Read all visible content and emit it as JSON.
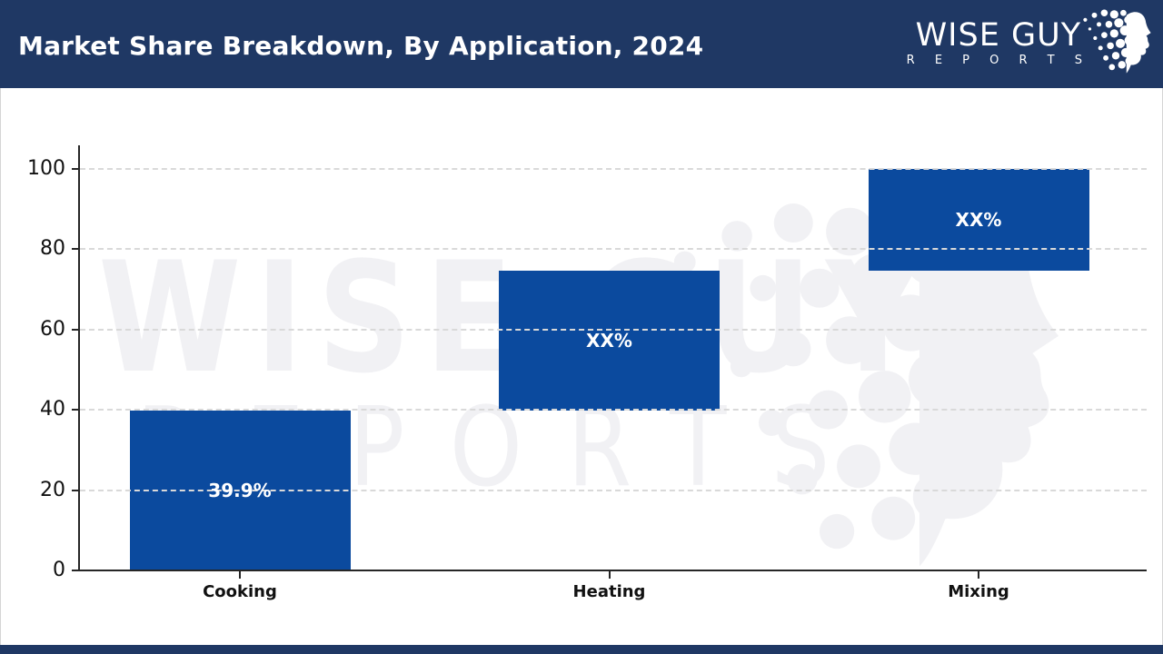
{
  "header": {
    "title": "Market Share Breakdown, By Application, 2024",
    "bg_color": "#1f3864",
    "logo": {
      "primary": "WISE GUY",
      "secondary": "R E P O R T S",
      "face_icon": "dotted-head-profile"
    }
  },
  "watermark": {
    "line1": "WISE GUY",
    "line2": "REPORTS",
    "color": "#f1f1f4"
  },
  "chart_data": {
    "type": "bar",
    "subtype": "floating-waterfall",
    "title": "Market Share Breakdown, By Application, 2024",
    "categories": [
      "Cooking",
      "Heating",
      "Mixing"
    ],
    "series": [
      {
        "name": "Market Share (%)",
        "segments": [
          {
            "category": "Cooking",
            "start": 0,
            "end": 39.9,
            "label": "39.9%"
          },
          {
            "category": "Heating",
            "start": 39.9,
            "end": 74.7,
            "label": "XX%"
          },
          {
            "category": "Mixing",
            "start": 74.7,
            "end": 100,
            "label": "XX%"
          }
        ]
      }
    ],
    "xlabel": "",
    "ylabel": "",
    "yticks": [
      0,
      20,
      40,
      60,
      80,
      100
    ],
    "ylim": [
      0,
      107
    ],
    "bar_color": "#0b4a9e",
    "value_label_color": "#ffffff",
    "axis_color": "#262626",
    "grid": {
      "horizontal": true,
      "style": "dashed",
      "color": "#d9d9d9",
      "above_bars": true
    },
    "legend": "none"
  },
  "footer": {
    "bg_color": "#1f3864"
  }
}
